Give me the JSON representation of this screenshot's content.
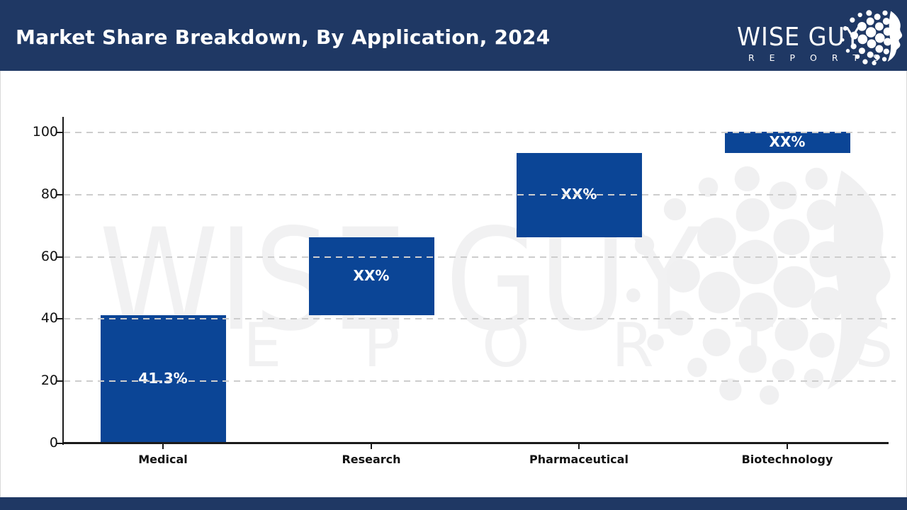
{
  "header": {
    "title": "Market Share Breakdown, By Application, 2024"
  },
  "logo": {
    "line1": "WISE GUY",
    "line2": "R E P O R T S"
  },
  "watermark": {
    "line1": "WISE GUY",
    "line2": "R E P O R T S"
  },
  "colors": {
    "navy": "#1F3864",
    "bar_blue": "#0B4596",
    "gridline": "#CDCDCD",
    "axis": "#1A1A1A",
    "watermark_gray": "#F1F1F2",
    "bar_label_white": "#FFFFFF"
  },
  "chart_data": {
    "type": "bar",
    "subtype": "waterfall",
    "title": "Market Share Breakdown, By Application, 2024",
    "categories": [
      "Medical",
      "Research",
      "Pharmaceutical",
      "Biotechnology"
    ],
    "segments": [
      {
        "category": "Medical",
        "start": 0,
        "end": 41.3,
        "label": "41.3%"
      },
      {
        "category": "Research",
        "start": 41.3,
        "end": 66.2,
        "label": "XX%"
      },
      {
        "category": "Pharmaceutical",
        "start": 66.2,
        "end": 93.5,
        "label": "XX%"
      },
      {
        "category": "Biotechnology",
        "start": 93.5,
        "end": 100.2,
        "label": "XX%"
      }
    ],
    "xlabel": "",
    "ylabel": "",
    "ylim": [
      0,
      100
    ],
    "yticks": [
      0,
      20,
      40,
      60,
      80,
      100
    ],
    "grid": "horizontal-dashed",
    "bar_color": "#0B4596",
    "value_unit": "%"
  }
}
